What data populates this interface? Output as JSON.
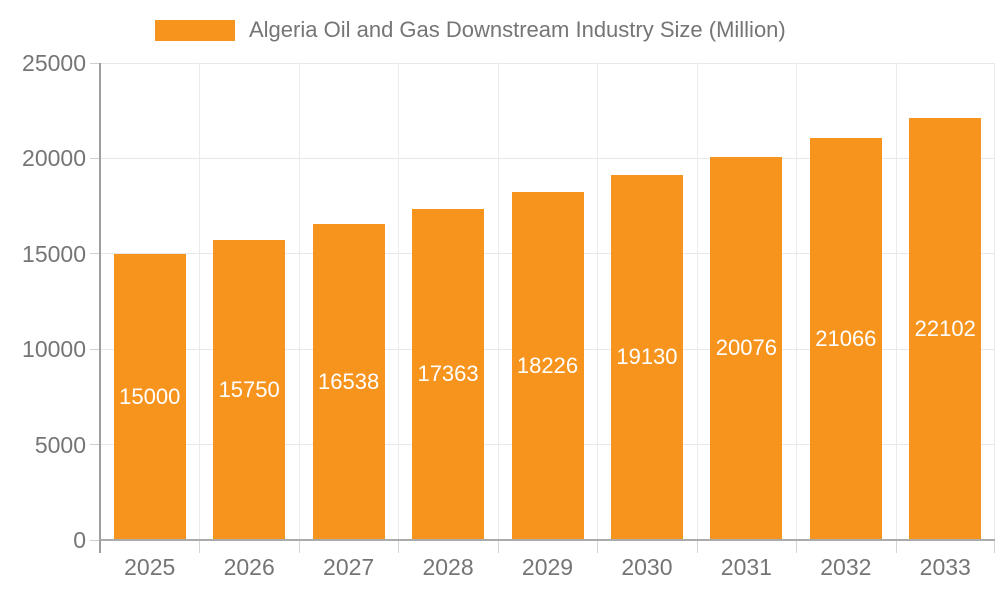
{
  "chart_data": {
    "type": "bar",
    "title": "Algeria Oil and Gas Downstream Industry Size (Million)",
    "categories": [
      "2025",
      "2026",
      "2027",
      "2028",
      "2029",
      "2030",
      "2031",
      "2032",
      "2033"
    ],
    "values": [
      15000,
      15750,
      16538,
      17363,
      18226,
      19130,
      20076,
      21066,
      22102
    ],
    "yticks": [
      0,
      5000,
      10000,
      15000,
      20000,
      25000
    ],
    "ylim": [
      0,
      25000
    ],
    "xlabel": "",
    "ylabel": "",
    "grid": true,
    "legend_position": "top-left",
    "bar_label_position": "inside-middle",
    "colors": {
      "bar": "#f7941e",
      "bar_label": "#ffffff",
      "axis_text": "#757575",
      "legend_text": "#757575",
      "gridline": "#e8e8e8",
      "axis_line": "#9e9e9e"
    }
  }
}
